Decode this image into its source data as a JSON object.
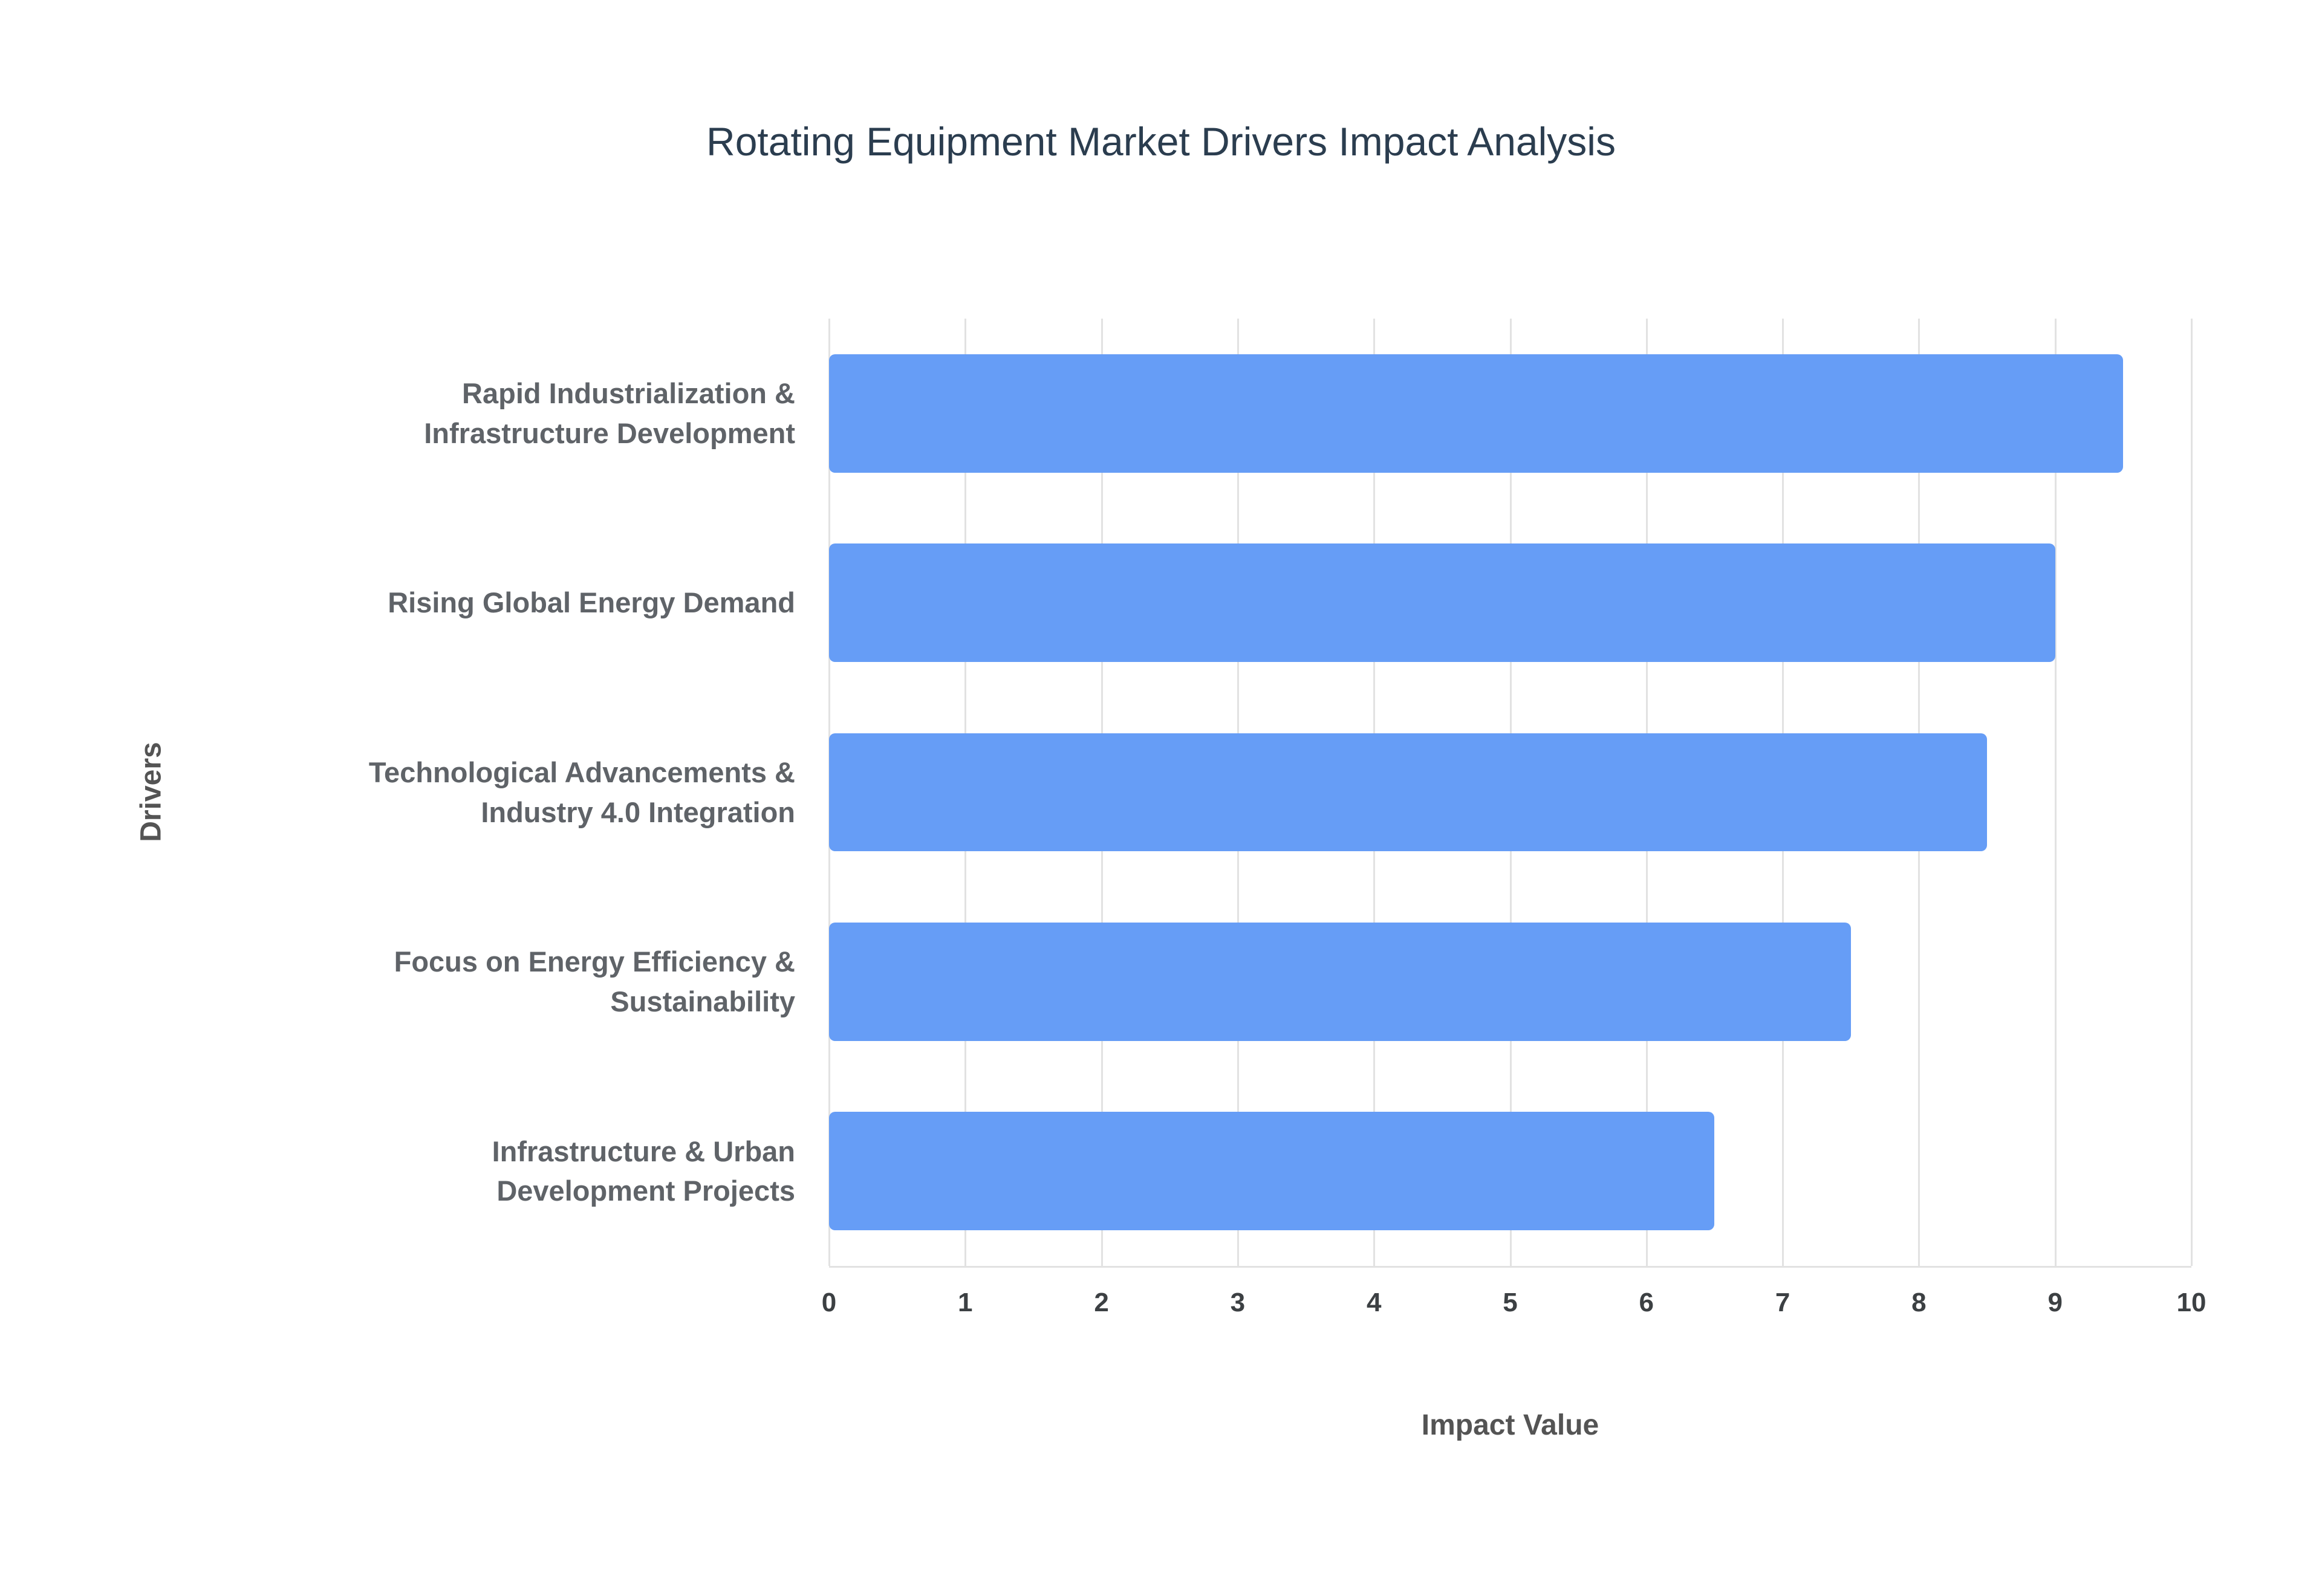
{
  "chart_data": {
    "type": "bar",
    "orientation": "horizontal",
    "title": "Rotating Equipment Market Drivers Impact Analysis",
    "xlabel": "Impact Value",
    "ylabel": "Drivers",
    "categories": [
      "Rapid Industrialization & Infrastructure Development",
      "Rising Global Energy Demand",
      "Technological Advancements & Industry 4.0 Integration",
      "Focus on Energy Efficiency & Sustainability",
      "Infrastructure & Urban Development Projects"
    ],
    "values": [
      9.5,
      9,
      8.5,
      7.5,
      6.5
    ],
    "xlim": [
      0,
      10
    ],
    "xticks": [
      0,
      1,
      2,
      3,
      4,
      5,
      6,
      7,
      8,
      9,
      10
    ],
    "grid": "vertical",
    "legend": "none"
  },
  "colors": {
    "bar": "#669df6",
    "grid": "#e2e2e2",
    "title": "#2b3d4f",
    "category_label": "#5f6368",
    "tick_label": "#3c4043",
    "axis_title": "#545454",
    "background": "#ffffff"
  }
}
